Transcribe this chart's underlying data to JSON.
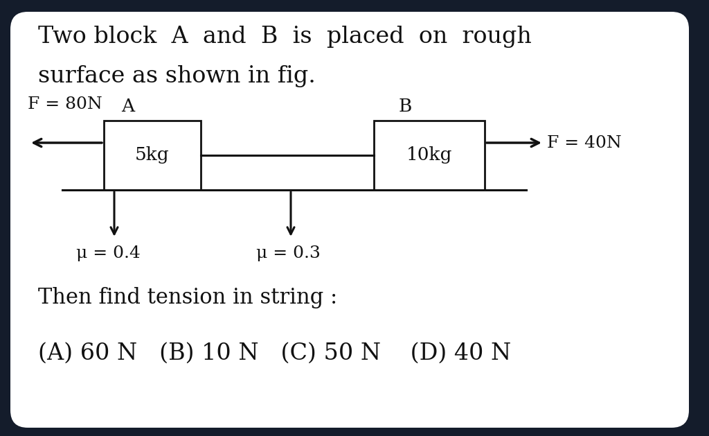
{
  "outer_bg": "#141c2b",
  "card_bg": "#ffffff",
  "text_color": "#111111",
  "box_color": "#111111",
  "title_line1": "Two block  A  and  B  is  placed  on  rough",
  "title_line2": "surface as shown in fig.",
  "block_A_label": "5kg",
  "block_B_label": "10kg",
  "label_A": "A",
  "label_B": "B",
  "force_left_label": "F = 80N",
  "force_right_label": "F = 40N",
  "mu_left_label": "μ = 0.4",
  "mu_right_label": "μ = 0.3",
  "question": "Then find tension in string :",
  "options": "(A) 60 N   (B) 10 N   (C) 50 N    (D) 40 N",
  "font_size_title": 24,
  "font_size_labels": 19,
  "font_size_options": 24
}
